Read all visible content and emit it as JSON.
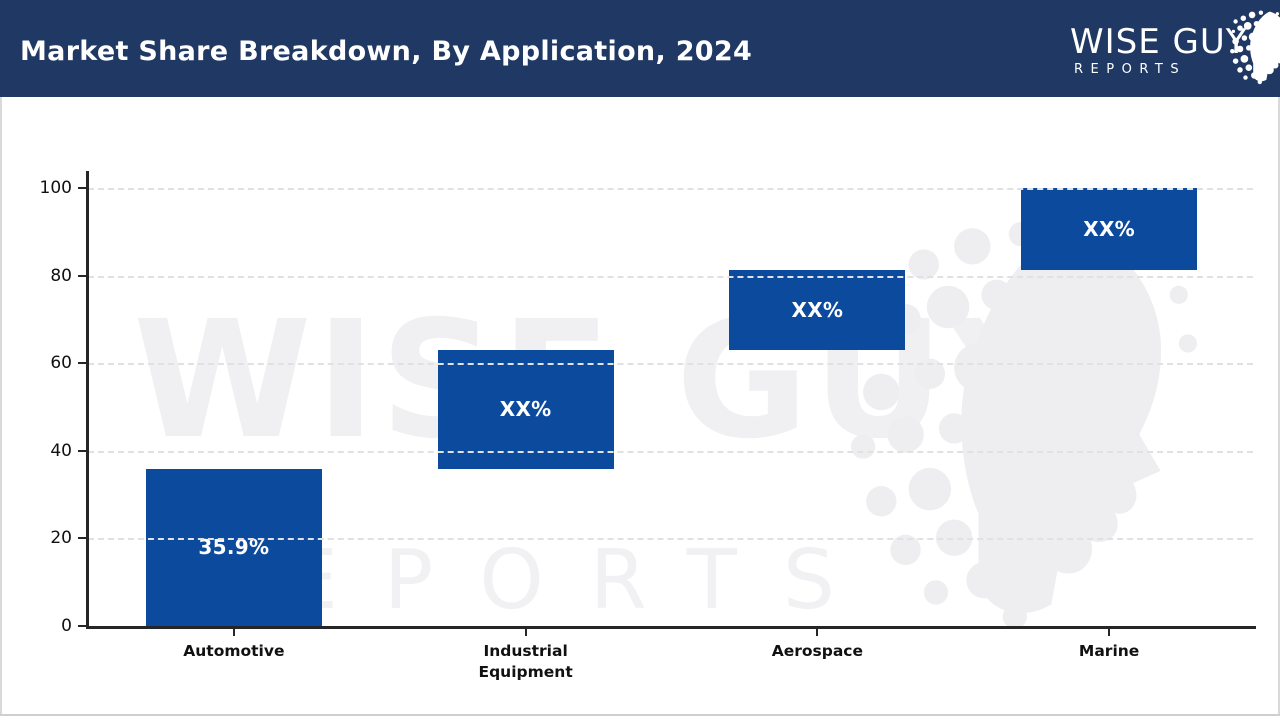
{
  "header": {
    "title": "Market Share Breakdown, By Application, 2024",
    "bg_color": "#1f3864",
    "logo": {
      "line1": "WISE GUY",
      "line2": "REPORTS"
    }
  },
  "watermark": {
    "line1": "WISE GUY",
    "line2": "REPORTS"
  },
  "chart_data": {
    "type": "bar",
    "subtype": "waterfall",
    "title": "Market Share Breakdown, By Application, 2024",
    "categories": [
      "Automotive",
      "Industrial\nEquipment",
      "Aerospace",
      "Marine"
    ],
    "segments": [
      {
        "category": "Automotive",
        "start": 0,
        "end": 35.9,
        "label": "35.9%"
      },
      {
        "category": "Industrial Equipment",
        "start": 35.9,
        "end": 63.0,
        "label": "XX%"
      },
      {
        "category": "Aerospace",
        "start": 63.0,
        "end": 81.2,
        "label": "XX%"
      },
      {
        "category": "Marine",
        "start": 81.2,
        "end": 100,
        "label": "XX%"
      }
    ],
    "values_delta": [
      35.9,
      27.1,
      18.2,
      18.8
    ],
    "xlabel": "",
    "ylabel": "",
    "ylim": [
      0,
      100
    ],
    "yticks": [
      0,
      20,
      40,
      60,
      80,
      100
    ],
    "grid": "horizontal-dashed",
    "legend": "none",
    "bar_color": "#0c4a9e",
    "bar_label_color": "#ffffff",
    "axis_color": "#262626",
    "grid_color": "#e1e1e1"
  }
}
